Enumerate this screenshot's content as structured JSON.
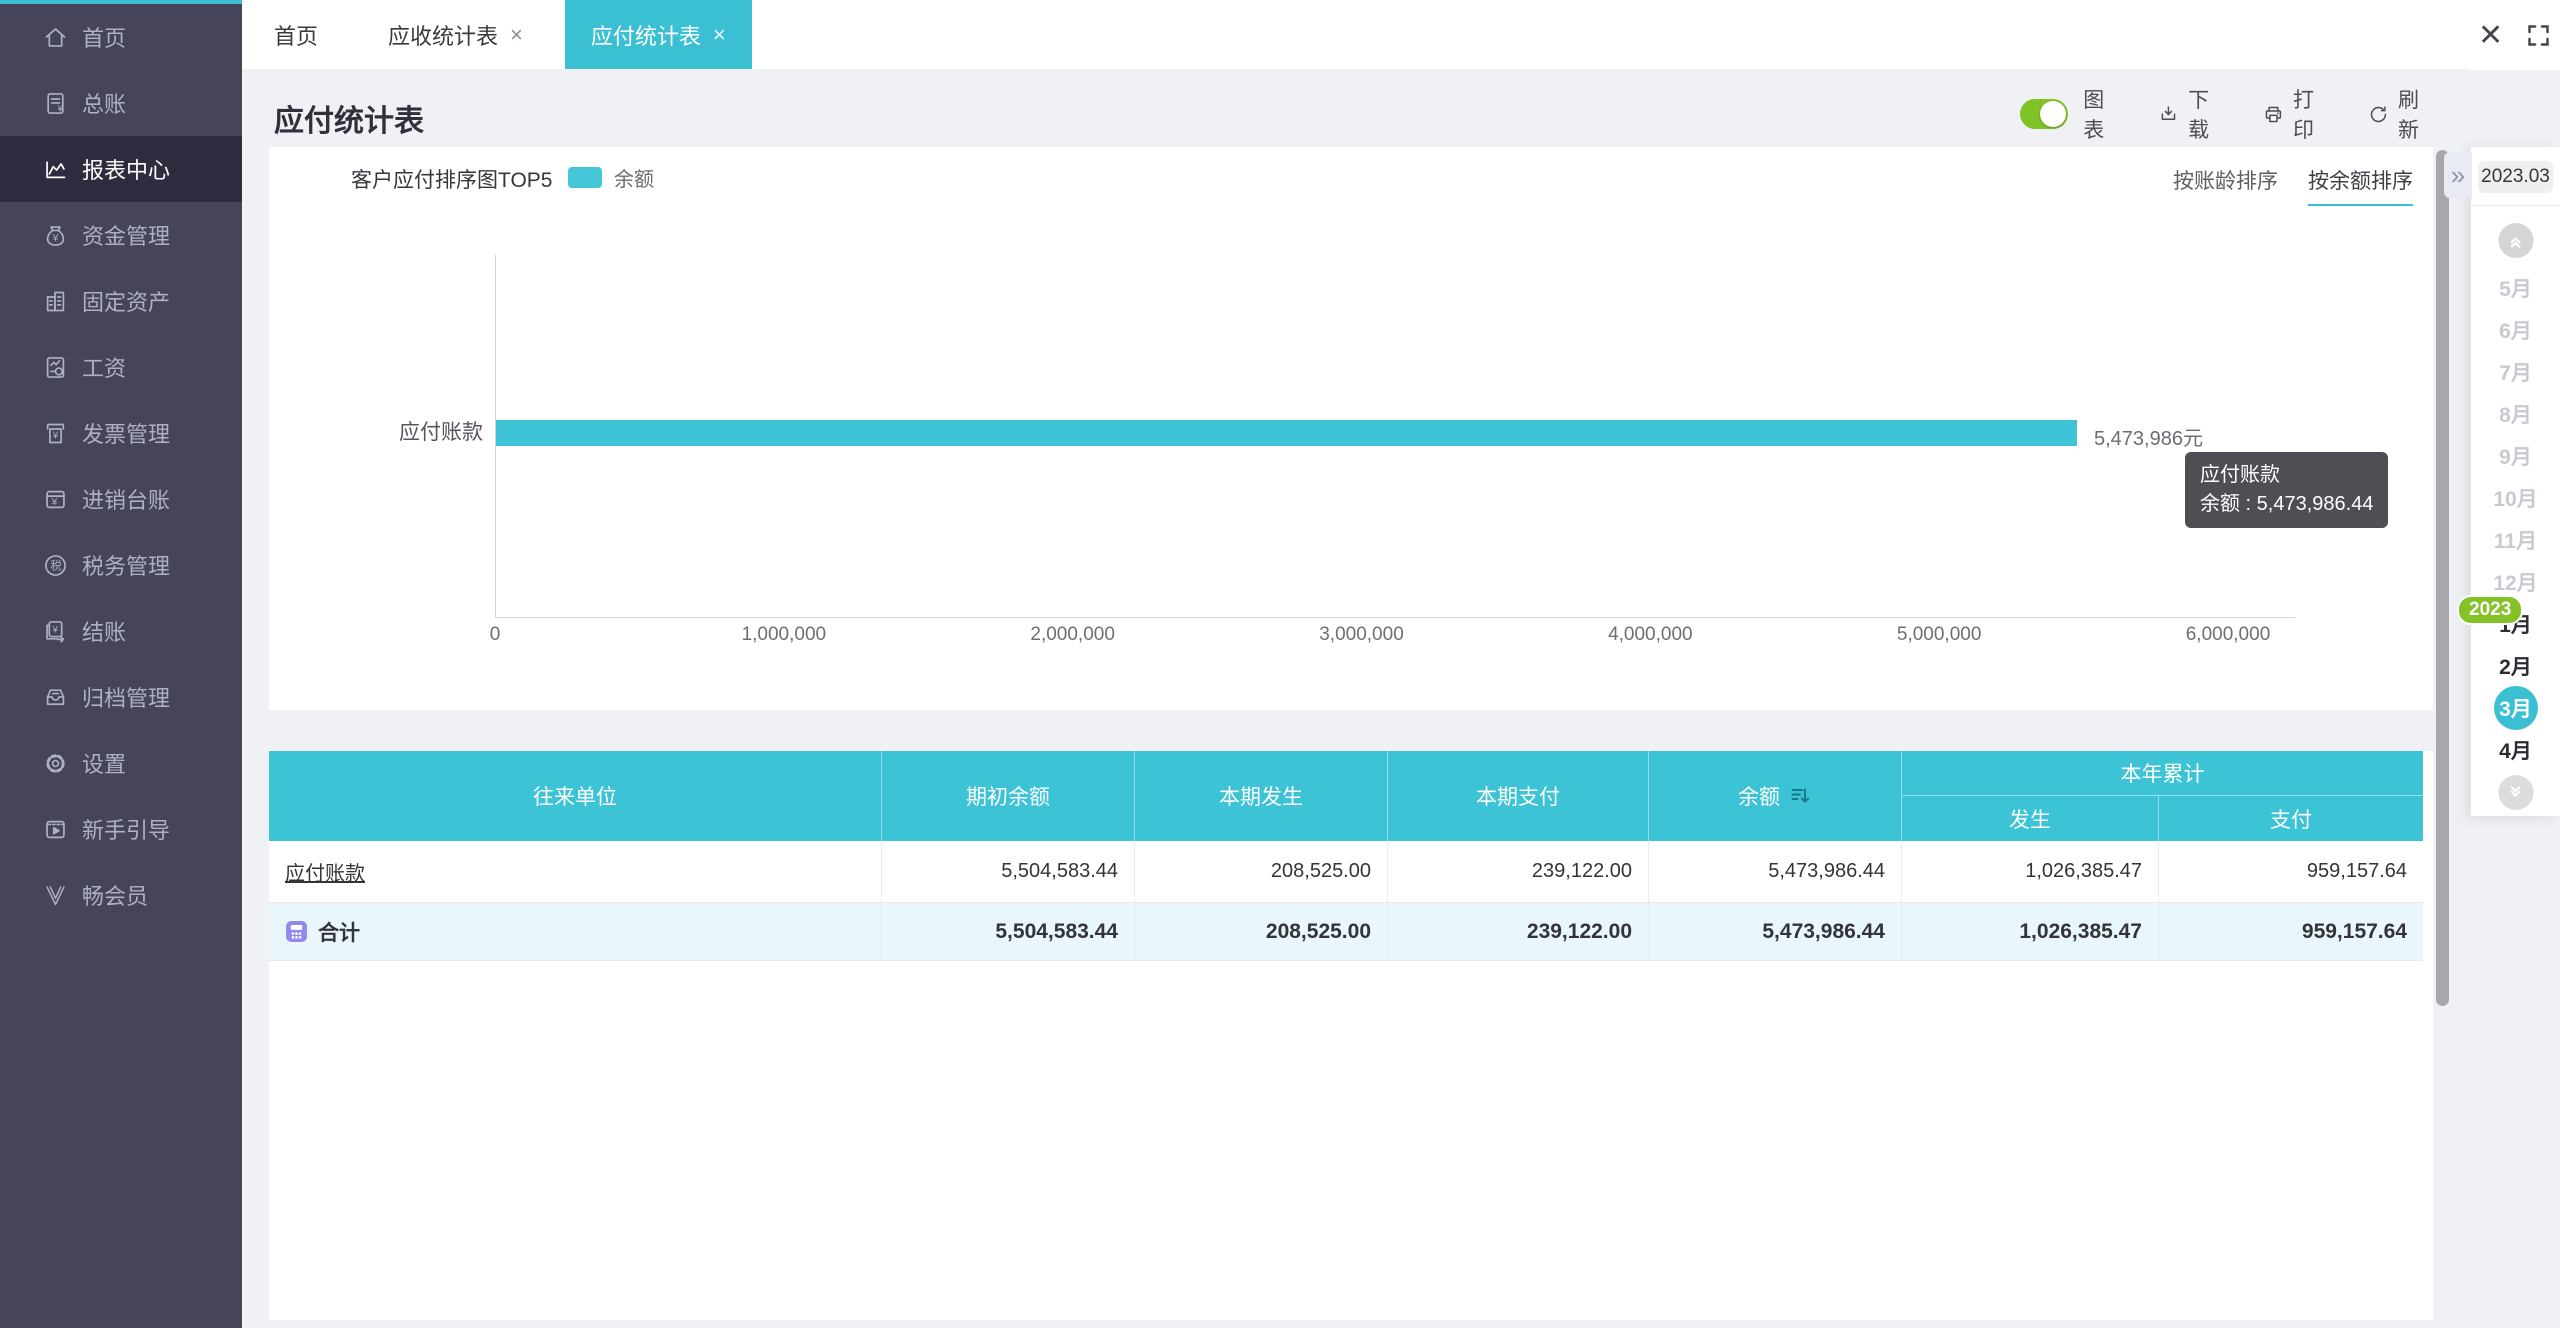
{
  "colors": {
    "accent": "#3bc0d3",
    "table_header": "#3cc3d6",
    "toggle_on": "#7fc325",
    "year_badge_green": "#84c228",
    "sidebar_bg": "#454459",
    "sidebar_active_bg": "#2e2d40",
    "total_row_bg": "#e9f6fb",
    "bar_color": "#3ec4d6"
  },
  "sidebar": {
    "items": [
      {
        "label": "首页",
        "icon": "home-icon"
      },
      {
        "label": "总账",
        "icon": "general-ledger-icon"
      },
      {
        "label": "报表中心",
        "icon": "report-center-icon",
        "active": true
      },
      {
        "label": "资金管理",
        "icon": "funds-icon"
      },
      {
        "label": "固定资产",
        "icon": "fixed-assets-icon"
      },
      {
        "label": "工资",
        "icon": "salary-icon"
      },
      {
        "label": "发票管理",
        "icon": "invoice-icon"
      },
      {
        "label": "进销台账",
        "icon": "purchase-sales-icon"
      },
      {
        "label": "税务管理",
        "icon": "tax-icon"
      },
      {
        "label": "结账",
        "icon": "closing-icon"
      },
      {
        "label": "归档管理",
        "icon": "archive-icon"
      },
      {
        "label": "设置",
        "icon": "settings-icon"
      },
      {
        "label": "新手引导",
        "icon": "guide-icon"
      },
      {
        "label": "畅会员",
        "icon": "member-icon"
      }
    ]
  },
  "tabs": [
    {
      "label": "首页",
      "closable": false,
      "active": false
    },
    {
      "label": "应收统计表",
      "closable": true,
      "active": false,
      "close_glyph": "×"
    },
    {
      "label": "应付统计表",
      "closable": true,
      "active": true,
      "close_glyph": "×"
    }
  ],
  "window": {
    "close_glyph": "✕"
  },
  "page": {
    "title": "应付统计表"
  },
  "toolbar": {
    "chart_toggle_label": "图表",
    "chart_toggle_on": true,
    "download_label": "下载",
    "print_label": "打印",
    "refresh_label": "刷新"
  },
  "chart": {
    "title": "客户应付排序图TOP5",
    "legend_label": "余额",
    "sort_by_age_label": "按账龄排序",
    "sort_by_balance_label": "按余额排序",
    "active_sort": "按余额排序",
    "bar_category": "应付账款",
    "bar_value_label": "5,473,986元",
    "tooltip": {
      "line1": "应付账款",
      "line2": "余额 : 5,473,986.44"
    }
  },
  "chart_data": {
    "type": "bar",
    "orientation": "horizontal",
    "title": "客户应付排序图TOP5",
    "categories": [
      "应付账款"
    ],
    "series": [
      {
        "name": "余额",
        "values": [
          5473986.44
        ]
      }
    ],
    "xlim": [
      0,
      6000000
    ],
    "x_ticks": [
      0,
      1000000,
      2000000,
      3000000,
      4000000,
      5000000,
      6000000
    ],
    "x_tick_labels": [
      "0",
      "1,000,000",
      "2,000,000",
      "3,000,000",
      "4,000,000",
      "5,000,000",
      "6,000,000"
    ],
    "legend_position": "top",
    "grid": false
  },
  "table": {
    "headers": {
      "unit": "往来单位",
      "opening_balance": "期初余额",
      "current_incurred": "本期发生",
      "current_paid": "本期支付",
      "balance": "余额",
      "ytd_group": "本年累计",
      "ytd_incurred": "发生",
      "ytd_paid": "支付"
    },
    "rows": [
      {
        "cells": [
          "应付账款",
          "5,504,583.44",
          "208,525.00",
          "239,122.00",
          "5,473,986.44",
          "1,026,385.47",
          "959,157.64"
        ]
      }
    ],
    "total": {
      "cells": [
        "合计",
        "5,504,583.44",
        "208,525.00",
        "239,122.00",
        "5,473,986.44",
        "1,026,385.47",
        "959,157.64"
      ]
    }
  },
  "date_panel": {
    "current_period": "2023.03",
    "collapse_glyph": "»",
    "year_badge": "2023",
    "months": [
      {
        "label": "5月",
        "state": "disabled"
      },
      {
        "label": "6月",
        "state": "disabled"
      },
      {
        "label": "7月",
        "state": "disabled"
      },
      {
        "label": "8月",
        "state": "disabled"
      },
      {
        "label": "9月",
        "state": "disabled"
      },
      {
        "label": "10月",
        "state": "disabled"
      },
      {
        "label": "11月",
        "state": "disabled"
      },
      {
        "label": "12月",
        "state": "disabled"
      },
      {
        "label": "1月",
        "state": "normal"
      },
      {
        "label": "2月",
        "state": "normal"
      },
      {
        "label": "3月",
        "state": "selected"
      },
      {
        "label": "4月",
        "state": "normal"
      }
    ]
  }
}
